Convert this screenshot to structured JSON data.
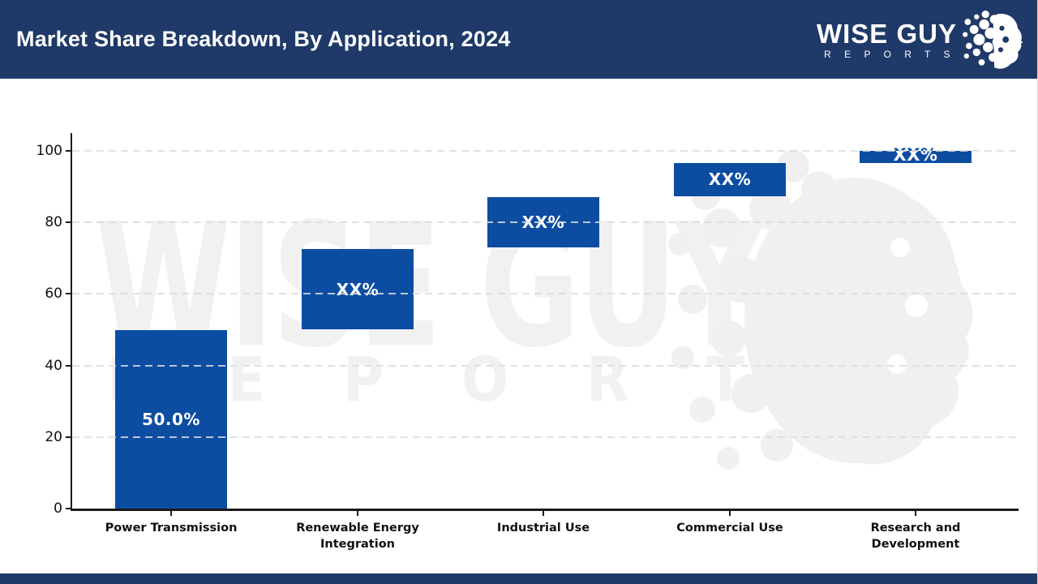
{
  "header": {
    "title": "Market Share Breakdown, By Application, 2024",
    "logo_line1": "WISE GUY",
    "logo_line2": "R E P O R T S"
  },
  "watermark": {
    "line1": "WISE GUY",
    "line2": "R E P O R T S"
  },
  "colors": {
    "header_navy": "#1f3a68",
    "bar_blue": "#0c4da2",
    "grid_gray": "#dcdcdc",
    "axis_black": "#1a1a1a",
    "watermark_gray": "#f1f1f1",
    "value_label_white": "#ffffff"
  },
  "chart_data": {
    "type": "bar",
    "subtype": "waterfall",
    "title": "Market Share Breakdown, By Application, 2024",
    "categories": [
      "Power Transmission",
      "Renewable Energy\nIntegration",
      "Industrial Use",
      "Commercial Use",
      "Research and\nDevelopment"
    ],
    "segments": [
      {
        "category": "Power Transmission",
        "start": 0,
        "end": 50,
        "label": "50.0%"
      },
      {
        "category": "Renewable Energy Integration",
        "start": 50,
        "end": 72.5,
        "label": "XX%"
      },
      {
        "category": "Industrial Use",
        "start": 73,
        "end": 87,
        "label": "XX%"
      },
      {
        "category": "Commercial Use",
        "start": 87.3,
        "end": 96.6,
        "label": "XX%"
      },
      {
        "category": "Research and Development",
        "start": 96.6,
        "end": 100,
        "label": "XX%"
      }
    ],
    "yticks": [
      0,
      20,
      40,
      60,
      80,
      100
    ],
    "ylim": [
      0,
      105
    ],
    "xlabel": "",
    "ylabel": "",
    "grid": "dashed-horizontal",
    "legend": "none",
    "bar_color": "#0c4da2",
    "value_label_color": "#ffffff"
  }
}
